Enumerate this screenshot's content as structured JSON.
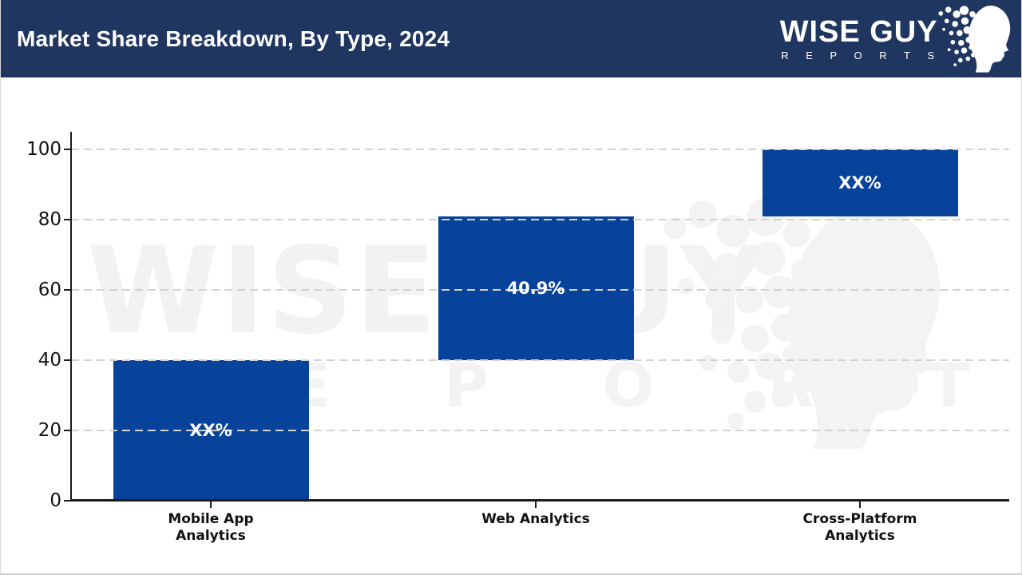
{
  "header": {
    "title": "Market Share Breakdown, By Type, 2024",
    "logo": {
      "primary": "WISE GUY",
      "secondary": "R E P O R T S"
    }
  },
  "watermark": {
    "primary": "WISE GUY",
    "secondary": "R E P O R T S"
  },
  "chart_data": {
    "type": "bar",
    "subtype": "waterfall",
    "title": "Market Share Breakdown, By Type, 2024",
    "categories": [
      "Mobile App Analytics",
      "Web Analytics",
      "Cross-Platform Analytics"
    ],
    "bars": [
      {
        "category": "Mobile App Analytics",
        "label_lines": [
          "Mobile App",
          "Analytics"
        ],
        "start": 0,
        "end": 40,
        "segment_value": 40,
        "value_label": "XX%"
      },
      {
        "category": "Web Analytics",
        "label_lines": [
          "Web Analytics"
        ],
        "start": 40,
        "end": 80.9,
        "segment_value": 40.9,
        "value_label": "40.9%"
      },
      {
        "category": "Cross-Platform Analytics",
        "label_lines": [
          "Cross-Platform",
          "Analytics"
        ],
        "start": 80.9,
        "end": 100,
        "segment_value": 19.1,
        "value_label": "XX%"
      }
    ],
    "yticks": [
      0,
      20,
      40,
      60,
      80,
      100
    ],
    "ylim": [
      0,
      105
    ],
    "xlabel": "",
    "ylabel": "",
    "grid": "horizontal-dashed",
    "legend": "none",
    "bar_color": "#08439b",
    "value_label_color": "#ffffff",
    "background": "#ffffff"
  },
  "colors": {
    "header_bg": "#1f3660",
    "bar": "#08439b",
    "grid": "#d2d2d2",
    "axis": "#1c1c1c",
    "text": "#111111",
    "watermark": "#f2f2f2"
  }
}
